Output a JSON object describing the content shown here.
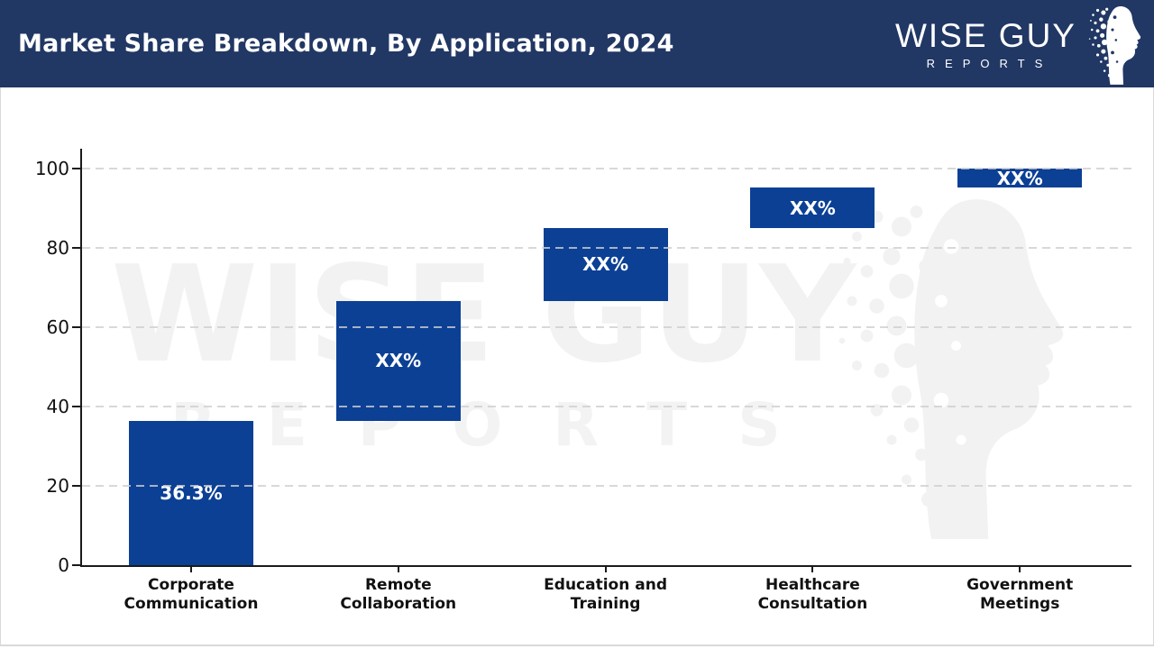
{
  "header": {
    "title": "Market Share Breakdown, By Application, 2024",
    "bg_color": "#213764",
    "logo": {
      "line1": "WISE GUY",
      "line2": "REPORTS"
    }
  },
  "watermark": {
    "line1": "WISE GUY",
    "line2": "REPORTS"
  },
  "chart_data": {
    "type": "bar",
    "subtype": "waterfall",
    "title": "Market Share Breakdown, By Application, 2024",
    "categories": [
      "Corporate\nCommunication",
      "Remote\nCollaboration",
      "Education and\nTraining",
      "Healthcare\nConsultation",
      "Government\nMeetings"
    ],
    "segments": [
      {
        "category": "Corporate Communication",
        "start": 0,
        "end": 36.3,
        "value": 36.3,
        "label": "36.3%"
      },
      {
        "category": "Remote Collaboration",
        "start": 36.3,
        "end": 66.7,
        "value": 30.4,
        "label": "XX%"
      },
      {
        "category": "Education and Training",
        "start": 66.7,
        "end": 84.9,
        "value": 18.2,
        "label": "XX%"
      },
      {
        "category": "Healthcare Consultation",
        "start": 84.9,
        "end": 95.2,
        "value": 10.3,
        "label": "XX%"
      },
      {
        "category": "Government Meetings",
        "start": 95.2,
        "end": 100,
        "value": 4.8,
        "label": "XX%"
      }
    ],
    "yticks": [
      0,
      20,
      40,
      60,
      80,
      100
    ],
    "ylim": [
      0,
      105
    ],
    "xlabel": "",
    "ylabel": "",
    "grid": "dashed-horizontal",
    "legend": null,
    "bar_color": "#0b4095",
    "bar_label_color": "#ffffff",
    "axis_color": "#1a1a1a"
  }
}
